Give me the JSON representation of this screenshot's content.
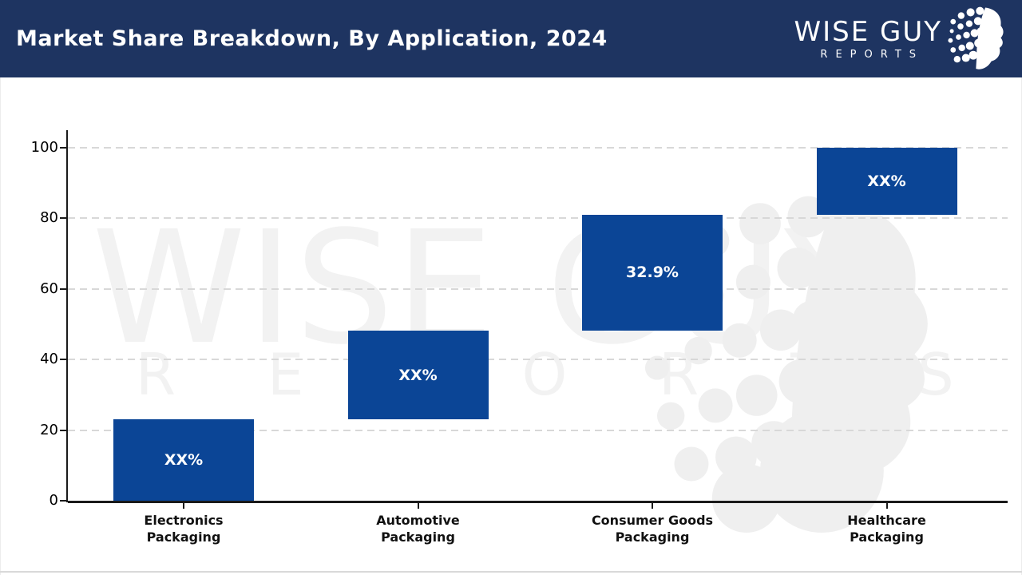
{
  "header": {
    "title": "Market Share Breakdown, By Application, 2024",
    "bg_color": "#1e3461",
    "logo": {
      "line1": "WISE GUY",
      "line2": "REPORTS",
      "head_icon": "dotted-face-profile"
    }
  },
  "watermark": {
    "line1": "WISE GUY",
    "line2": "R E P O R T S",
    "color": "#f2f2f2",
    "head_icon": "dotted-face-profile"
  },
  "chart_data": {
    "type": "bar",
    "subtype": "floating-segment-waterfall",
    "title": "Market Share Breakdown, By Application, 2024",
    "categories": [
      "Electronics Packaging",
      "Automotive Packaging",
      "Consumer Goods Packaging",
      "Healthcare Packaging"
    ],
    "segments": [
      {
        "category": "Electronics Packaging",
        "category_lines": [
          "Electronics",
          "Packaging"
        ],
        "value_label": "XX%",
        "from": 0,
        "to": 23
      },
      {
        "category": "Automotive Packaging",
        "category_lines": [
          "Automotive",
          "Packaging"
        ],
        "value_label": "XX%",
        "from": 23,
        "to": 48.2
      },
      {
        "category": "Consumer Goods Packaging",
        "category_lines": [
          "Consumer Goods",
          "Packaging"
        ],
        "value_label": "32.9%",
        "from": 48.2,
        "to": 81.1
      },
      {
        "category": "Healthcare Packaging",
        "category_lines": [
          "Healthcare",
          "Packaging"
        ],
        "value_label": "XX%",
        "from": 81.1,
        "to": 100
      }
    ],
    "xlabel": "",
    "ylabel": "",
    "ylim": [
      0,
      100
    ],
    "yticks": [
      0,
      20,
      40,
      60,
      80,
      100
    ],
    "grid": {
      "orientation": "horizontal",
      "style": "dashed",
      "color": "#d8d8d8",
      "lines_at": [
        20,
        40,
        60,
        80,
        100
      ]
    },
    "legend": "none",
    "bar_color": "#0b4596",
    "value_label_color": "#ffffff",
    "axis_color": "#1a1a1a"
  },
  "borders": {
    "bottom_hairline": "#d9d9d9",
    "side_hairline": "#ececec"
  }
}
